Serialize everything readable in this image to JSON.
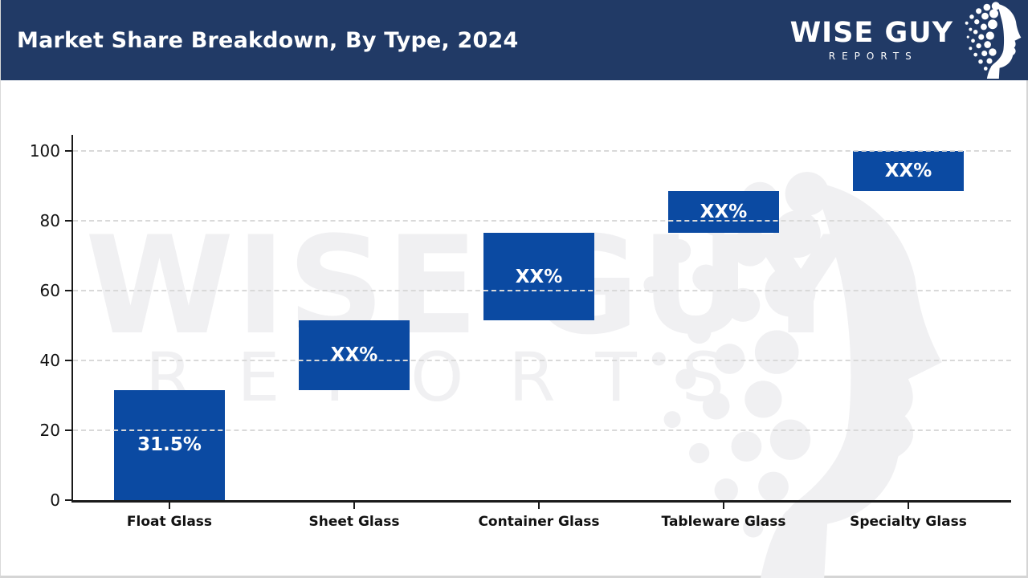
{
  "header": {
    "title": "Market Share Breakdown, By Type, 2024",
    "logo": {
      "line1": "WISE GUY",
      "line2": "REPORTS"
    }
  },
  "watermark": {
    "line1": "WISE GUY",
    "line2": "REPORTS"
  },
  "colors": {
    "header_bg": "#213a66",
    "bar": "#0b4aa2",
    "bar_label": "#ffffff",
    "axis": "#1a1a1a",
    "grid": "#d9d9d9",
    "tick_label": "#111111",
    "watermark": "#f0f0f2"
  },
  "chart_data": {
    "type": "bar",
    "subtype": "floating-waterfall",
    "title": "Market Share Breakdown, By Type, 2024",
    "categories": [
      "Float Glass",
      "Sheet Glass",
      "Container Glass",
      "Tableware Glass",
      "Specialty Glass"
    ],
    "segments": [
      {
        "category": "Float Glass",
        "start": 0,
        "end": 31.5,
        "label": "31.5%"
      },
      {
        "category": "Sheet Glass",
        "start": 31.5,
        "end": 51.5,
        "label": "XX%"
      },
      {
        "category": "Container Glass",
        "start": 51.5,
        "end": 76.5,
        "label": "XX%"
      },
      {
        "category": "Tableware Glass",
        "start": 76.5,
        "end": 88.5,
        "label": "XX%"
      },
      {
        "category": "Specialty Glass",
        "start": 88.5,
        "end": 100,
        "label": "XX%"
      }
    ],
    "xlabel": "",
    "ylabel": "",
    "yticks": [
      0,
      20,
      40,
      60,
      80,
      100
    ],
    "ylim": [
      0,
      105
    ],
    "grid": "horizontal-dashed-over-bars",
    "legend": "none"
  }
}
